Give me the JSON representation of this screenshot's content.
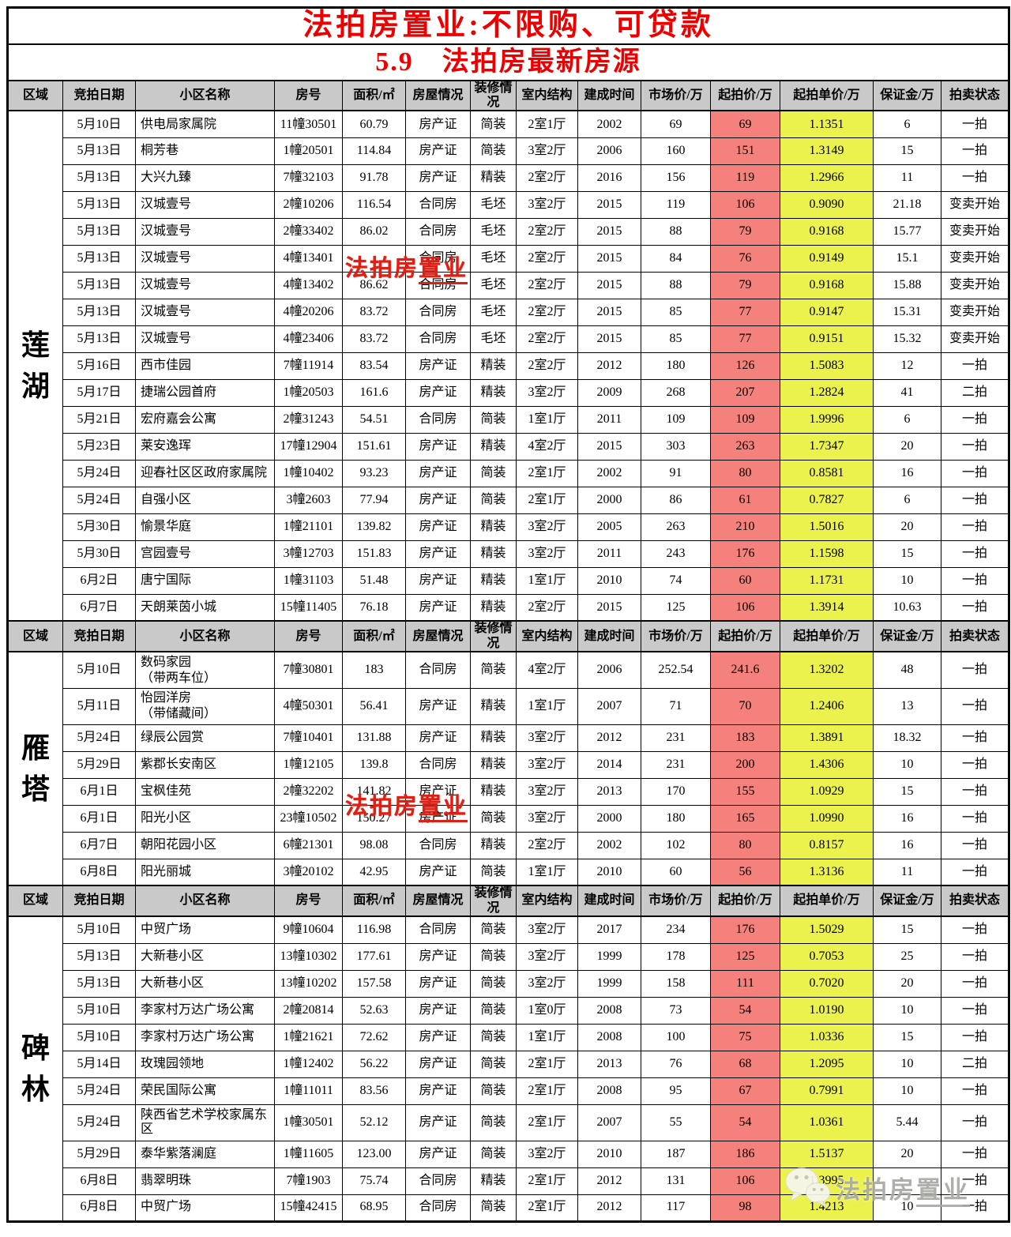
{
  "titles": {
    "line1": "法拍房置业:不限购、可贷款",
    "line2": "5.9　法拍房最新房源"
  },
  "headers": [
    "区域",
    "竞拍日期",
    "小区名称",
    "房号",
    "面积/㎡",
    "房屋情况",
    "装修情况",
    "室内结构",
    "建成时间",
    "市场价/万",
    "起拍价/万",
    "起拍单价/万",
    "保证金/万",
    "拍卖状态"
  ],
  "watermarks": {
    "red_prefix": "法拍房",
    "red_suffix": "置业",
    "gray_prefix": "法拍房",
    "gray_suffix": "置业",
    "wechat_icon": "wechat-icon"
  },
  "colors": {
    "title_red": "#ed0000",
    "header_bg": "#c9c9c9",
    "start_price_bg": "#f4817b",
    "unit_price_bg": "#ebf24e",
    "watermark_red": "#dd1f14"
  },
  "sections": [
    {
      "region": "莲湖",
      "rows": [
        {
          "date": "5月10日",
          "community": "供电局家属院",
          "room": "11幢30501",
          "area": "60.79",
          "housing": "房产证",
          "deco": "简装",
          "layout": "2室1厅",
          "built": "2002",
          "market": "69",
          "start": "69",
          "unit_price": "1.1351",
          "deposit": "6",
          "status": "一拍"
        },
        {
          "date": "5月13日",
          "community": "桐芳巷",
          "room": "1幢20501",
          "area": "114.84",
          "housing": "房产证",
          "deco": "简装",
          "layout": "3室2厅",
          "built": "2006",
          "market": "160",
          "start": "151",
          "unit_price": "1.3149",
          "deposit": "15",
          "status": "一拍"
        },
        {
          "date": "5月13日",
          "community": "大兴九臻",
          "room": "7幢32103",
          "area": "91.78",
          "housing": "房产证",
          "deco": "精装",
          "layout": "2室2厅",
          "built": "2016",
          "market": "156",
          "start": "119",
          "unit_price": "1.2966",
          "deposit": "11",
          "status": "一拍"
        },
        {
          "date": "5月13日",
          "community": "汉城壹号",
          "room": "2幢10206",
          "area": "116.54",
          "housing": "合同房",
          "deco": "毛坯",
          "layout": "3室2厅",
          "built": "2015",
          "market": "119",
          "start": "106",
          "unit_price": "0.9090",
          "deposit": "21.18",
          "status": "变卖开始"
        },
        {
          "date": "5月13日",
          "community": "汉城壹号",
          "room": "2幢33402",
          "area": "86.02",
          "housing": "合同房",
          "deco": "毛坯",
          "layout": "2室2厅",
          "built": "2015",
          "market": "88",
          "start": "79",
          "unit_price": "0.9168",
          "deposit": "15.77",
          "status": "变卖开始"
        },
        {
          "date": "5月13日",
          "community": "汉城壹号",
          "room": "4幢13401",
          "area": "",
          "housing": "合同房",
          "deco": "毛坯",
          "layout": "2室2厅",
          "built": "2015",
          "market": "84",
          "start": "76",
          "unit_price": "0.9149",
          "deposit": "15.1",
          "status": "变卖开始"
        },
        {
          "date": "5月13日",
          "community": "汉城壹号",
          "room": "4幢13402",
          "area": "86.62",
          "housing": "合同房",
          "deco": "毛坯",
          "layout": "2室2厅",
          "built": "2015",
          "market": "88",
          "start": "79",
          "unit_price": "0.9168",
          "deposit": "15.88",
          "status": "变卖开始"
        },
        {
          "date": "5月13日",
          "community": "汉城壹号",
          "room": "4幢20206",
          "area": "83.72",
          "housing": "合同房",
          "deco": "毛坯",
          "layout": "2室2厅",
          "built": "2015",
          "market": "85",
          "start": "77",
          "unit_price": "0.9147",
          "deposit": "15.31",
          "status": "变卖开始"
        },
        {
          "date": "5月13日",
          "community": "汉城壹号",
          "room": "4幢23406",
          "area": "83.72",
          "housing": "合同房",
          "deco": "毛坯",
          "layout": "2室2厅",
          "built": "2015",
          "market": "85",
          "start": "77",
          "unit_price": "0.9151",
          "deposit": "15.32",
          "status": "变卖开始"
        },
        {
          "date": "5月16日",
          "community": "西市佳园",
          "room": "7幢11914",
          "area": "83.54",
          "housing": "房产证",
          "deco": "精装",
          "layout": "2室2厅",
          "built": "2012",
          "market": "180",
          "start": "126",
          "unit_price": "1.5083",
          "deposit": "12",
          "status": "一拍"
        },
        {
          "date": "5月17日",
          "community": "捷瑞公园首府",
          "room": "1幢20503",
          "area": "161.6",
          "housing": "房产证",
          "deco": "精装",
          "layout": "3室2厅",
          "built": "2009",
          "market": "268",
          "start": "207",
          "unit_price": "1.2824",
          "deposit": "41",
          "status": "二拍"
        },
        {
          "date": "5月21日",
          "community": "宏府嘉会公寓",
          "room": "2幢31243",
          "area": "54.51",
          "housing": "合同房",
          "deco": "简装",
          "layout": "1室1厅",
          "built": "2011",
          "market": "109",
          "start": "109",
          "unit_price": "1.9996",
          "deposit": "6",
          "status": "一拍"
        },
        {
          "date": "5月23日",
          "community": "莱安逸珲",
          "room": "17幢12904",
          "area": "151.61",
          "housing": "房产证",
          "deco": "精装",
          "layout": "4室2厅",
          "built": "2015",
          "market": "303",
          "start": "263",
          "unit_price": "1.7347",
          "deposit": "20",
          "status": "一拍"
        },
        {
          "date": "5月24日",
          "community": "迎春社区区政府家属院",
          "room": "1幢10402",
          "area": "93.23",
          "housing": "房产证",
          "deco": "简装",
          "layout": "2室1厅",
          "built": "2002",
          "market": "91",
          "start": "80",
          "unit_price": "0.8581",
          "deposit": "16",
          "status": "一拍"
        },
        {
          "date": "5月24日",
          "community": "自强小区",
          "room": "3幢2603",
          "area": "77.94",
          "housing": "房产证",
          "deco": "简装",
          "layout": "2室1厅",
          "built": "2000",
          "market": "86",
          "start": "61",
          "unit_price": "0.7827",
          "deposit": "6",
          "status": "一拍"
        },
        {
          "date": "5月30日",
          "community": "愉景华庭",
          "room": "1幢21101",
          "area": "139.82",
          "housing": "房产证",
          "deco": "精装",
          "layout": "3室2厅",
          "built": "2005",
          "market": "263",
          "start": "210",
          "unit_price": "1.5016",
          "deposit": "20",
          "status": "一拍"
        },
        {
          "date": "5月30日",
          "community": "宫园壹号",
          "room": "3幢12703",
          "area": "151.83",
          "housing": "房产证",
          "deco": "精装",
          "layout": "3室2厅",
          "built": "2011",
          "market": "243",
          "start": "176",
          "unit_price": "1.1598",
          "deposit": "15",
          "status": "一拍"
        },
        {
          "date": "6月2日",
          "community": "唐宁国际",
          "room": "1幢31103",
          "area": "51.48",
          "housing": "房产证",
          "deco": "精装",
          "layout": "1室1厅",
          "built": "2010",
          "market": "74",
          "start": "60",
          "unit_price": "1.1731",
          "deposit": "10",
          "status": "一拍"
        },
        {
          "date": "6月7日",
          "community": "天朗莱茵小城",
          "room": "15幢11405",
          "area": "76.18",
          "housing": "房产证",
          "deco": "精装",
          "layout": "2室2厅",
          "built": "2015",
          "market": "125",
          "start": "106",
          "unit_price": "1.3914",
          "deposit": "10.63",
          "status": "一拍"
        }
      ]
    },
    {
      "region": "雁塔",
      "rows": [
        {
          "date": "5月10日",
          "community": "数码家园",
          "line2": "（带两车位）",
          "room": "7幢30801",
          "area": "183",
          "housing": "合同房",
          "deco": "简装",
          "layout": "4室2厅",
          "built": "2006",
          "market": "252.54",
          "start": "241.6",
          "unit_price": "1.3202",
          "deposit": "48",
          "status": "一拍"
        },
        {
          "date": "5月11日",
          "community": "怡园洋房",
          "line2": "（带储藏间）",
          "room": "4幢50301",
          "area": "56.41",
          "housing": "房产证",
          "deco": "精装",
          "layout": "1室1厅",
          "built": "2007",
          "market": "71",
          "start": "70",
          "unit_price": "1.2406",
          "deposit": "13",
          "status": "一拍"
        },
        {
          "date": "5月24日",
          "community": "绿辰公园赏",
          "room": "7幢10401",
          "area": "131.88",
          "housing": "房产证",
          "deco": "精装",
          "layout": "3室2厅",
          "built": "2012",
          "market": "231",
          "start": "183",
          "unit_price": "1.3891",
          "deposit": "18.32",
          "status": "一拍"
        },
        {
          "date": "5月29日",
          "community": "紫郡长安南区",
          "room": "1幢12105",
          "area": "139.8",
          "housing": "合同房",
          "deco": "精装",
          "layout": "3室2厅",
          "built": "2014",
          "market": "231",
          "start": "200",
          "unit_price": "1.4306",
          "deposit": "10",
          "status": "一拍"
        },
        {
          "date": "6月1日",
          "community": "宝枫佳苑",
          "room": "2幢32202",
          "area": "141.82",
          "housing": "房产证",
          "deco": "精装",
          "layout": "3室2厅",
          "built": "2013",
          "market": "170",
          "start": "155",
          "unit_price": "1.0929",
          "deposit": "15",
          "status": "一拍"
        },
        {
          "date": "6月1日",
          "community": "阳光小区",
          "room": "23幢10502",
          "area": "150.27",
          "housing": "房产证",
          "deco": "简装",
          "layout": "3室2厅",
          "built": "2000",
          "market": "180",
          "start": "165",
          "unit_price": "1.0990",
          "deposit": "16",
          "status": "一拍"
        },
        {
          "date": "6月7日",
          "community": "朝阳花园小区",
          "room": "6幢21301",
          "area": "98.08",
          "housing": "合同房",
          "deco": "精装",
          "layout": "2室2厅",
          "built": "2002",
          "market": "102",
          "start": "80",
          "unit_price": "0.8157",
          "deposit": "16",
          "status": "一拍"
        },
        {
          "date": "6月8日",
          "community": "阳光丽城",
          "room": "3幢20102",
          "area": "42.95",
          "housing": "房产证",
          "deco": "简装",
          "layout": "1室1厅",
          "built": "2010",
          "market": "60",
          "start": "56",
          "unit_price": "1.3136",
          "deposit": "11",
          "status": "一拍"
        }
      ]
    },
    {
      "region": "碑林",
      "rows": [
        {
          "date": "5月10日",
          "community": "中贸广场",
          "room": "9幢10604",
          "area": "116.98",
          "housing": "合同房",
          "deco": "简装",
          "layout": "3室2厅",
          "built": "2017",
          "market": "234",
          "start": "176",
          "unit_price": "1.5029",
          "deposit": "15",
          "status": "一拍"
        },
        {
          "date": "5月13日",
          "community": "大新巷小区",
          "room": "13幢10302",
          "area": "177.61",
          "housing": "房产证",
          "deco": "简装",
          "layout": "3室2厅",
          "built": "1999",
          "market": "178",
          "start": "125",
          "unit_price": "0.7053",
          "deposit": "25",
          "status": "一拍"
        },
        {
          "date": "5月13日",
          "community": "大新巷小区",
          "room": "13幢10202",
          "area": "157.58",
          "housing": "房产证",
          "deco": "简装",
          "layout": "3室2厅",
          "built": "1999",
          "market": "158",
          "start": "111",
          "unit_price": "0.7020",
          "deposit": "20",
          "status": "一拍"
        },
        {
          "date": "5月10日",
          "community": "李家村万达广场公寓",
          "room": "2幢20814",
          "area": "52.63",
          "housing": "房产证",
          "deco": "简装",
          "layout": "1室0厅",
          "built": "2008",
          "market": "73",
          "start": "54",
          "unit_price": "1.0190",
          "deposit": "10",
          "status": "一拍"
        },
        {
          "date": "5月10日",
          "community": "李家村万达广场公寓",
          "room": "1幢21621",
          "area": "72.62",
          "housing": "房产证",
          "deco": "简装",
          "layout": "1室1厅",
          "built": "2008",
          "market": "100",
          "start": "75",
          "unit_price": "1.0336",
          "deposit": "15",
          "status": "一拍"
        },
        {
          "date": "5月14日",
          "community": "玫瑰园领地",
          "room": "1幢12402",
          "area": "56.22",
          "housing": "房产证",
          "deco": "简装",
          "layout": "2室1厅",
          "built": "2013",
          "market": "76",
          "start": "68",
          "unit_price": "1.2095",
          "deposit": "10",
          "status": "二拍"
        },
        {
          "date": "5月24日",
          "community": "荣民国际公寓",
          "room": "1幢11011",
          "area": "83.56",
          "housing": "房产证",
          "deco": "简装",
          "layout": "2室1厅",
          "built": "2008",
          "market": "95",
          "start": "67",
          "unit_price": "0.7991",
          "deposit": "10",
          "status": "一拍"
        },
        {
          "date": "5月24日",
          "community": "陕西省艺术学校家属东区",
          "wrap": true,
          "room": "1幢30501",
          "area": "52.12",
          "housing": "房产证",
          "deco": "简装",
          "layout": "2室1厅",
          "built": "2007",
          "market": "55",
          "start": "54",
          "unit_price": "1.0361",
          "deposit": "5.44",
          "status": "一拍"
        },
        {
          "date": "5月29日",
          "community": "泰华紫落澜庭",
          "room": "1幢11605",
          "area": "123.00",
          "housing": "房产证",
          "deco": "简装",
          "layout": "3室2厅",
          "built": "2010",
          "market": "187",
          "start": "186",
          "unit_price": "1.5137",
          "deposit": "20",
          "status": "一拍"
        },
        {
          "date": "6月8日",
          "community": "翡翠明珠",
          "room": "7幢1903",
          "area": "75.74",
          "housing": "合同房",
          "deco": "精装",
          "layout": "2室1厅",
          "built": "2012",
          "market": "131",
          "start": "106",
          "unit_price": "1.3995",
          "deposit": "",
          "status": "一拍"
        },
        {
          "date": "6月8日",
          "community": "中贸广场",
          "room": "15幢42415",
          "area": "68.95",
          "housing": "合同房",
          "deco": "简装",
          "layout": "2室1厅",
          "built": "2012",
          "market": "117",
          "start": "98",
          "unit_price": "1.4213",
          "deposit": "10",
          "status": "一拍"
        }
      ]
    }
  ]
}
